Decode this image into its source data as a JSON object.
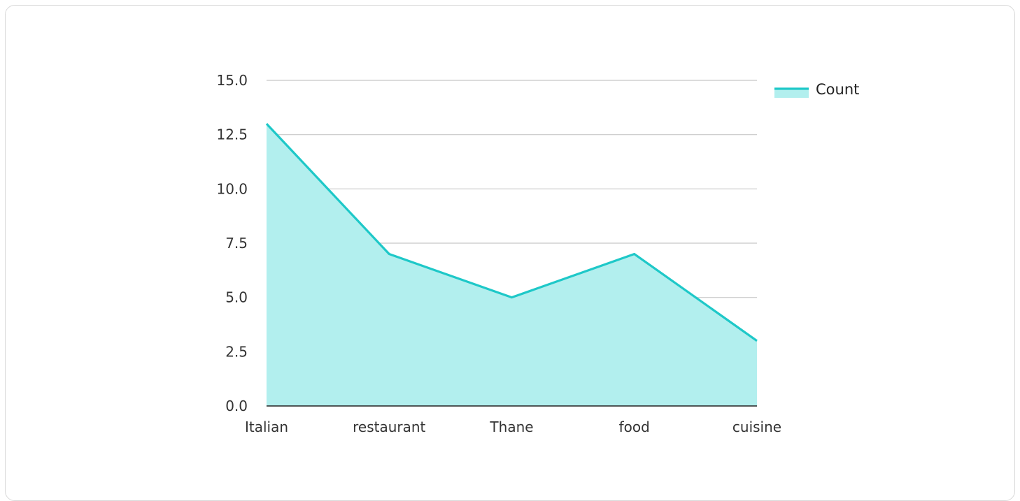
{
  "chart_data": {
    "type": "area",
    "categories": [
      "Italian",
      "restaurant",
      "Thane",
      "food",
      "cuisine"
    ],
    "series": [
      {
        "name": "Count",
        "values": [
          13,
          7,
          5,
          7,
          3
        ]
      }
    ],
    "y_ticks": [
      "0.0",
      "2.5",
      "5.0",
      "7.5",
      "10.0",
      "12.5",
      "15.0"
    ],
    "ylim": [
      0,
      15
    ],
    "grid": true,
    "legend_position": "top-right",
    "colors": {
      "line": "#1ec8c8",
      "fill": "#b2efee",
      "grid": "#c8c8c8",
      "axis": "#222222"
    }
  }
}
